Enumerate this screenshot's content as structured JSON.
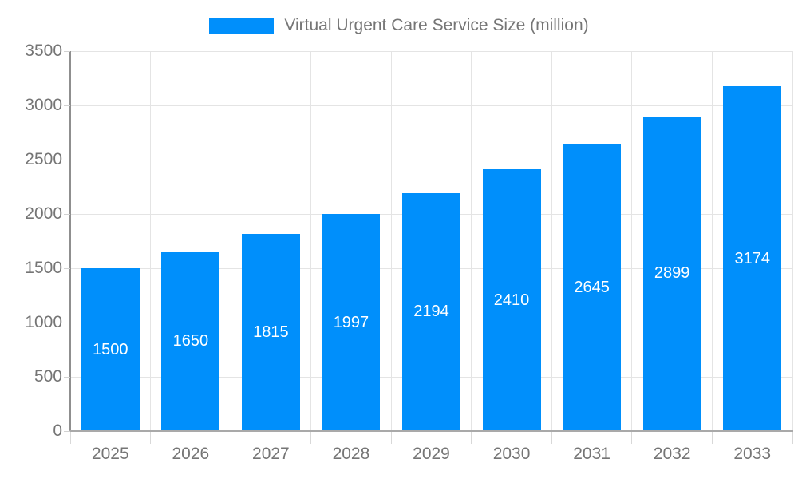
{
  "chart_data": {
    "type": "bar",
    "title": "Virtual Urgent Care Service Size (million)",
    "legend_entries": [
      "Virtual Urgent Care Service Size (million)"
    ],
    "legend_position": "top",
    "categories": [
      "2025",
      "2026",
      "2027",
      "2028",
      "2029",
      "2030",
      "2031",
      "2032",
      "2033"
    ],
    "values": [
      1500,
      1650,
      1815,
      1997,
      2194,
      2410,
      2645,
      2899,
      3174
    ],
    "value_labels_shown": true,
    "xlabel": "",
    "ylabel": "",
    "ylim": [
      0,
      3500
    ],
    "ytick_step": 500,
    "yticks": [
      0,
      500,
      1000,
      1500,
      2000,
      2500,
      3000,
      3500
    ],
    "grid": true,
    "colors": {
      "bar": "#008FFB",
      "value_label": "#FFFFFF",
      "axis_text": "#757575",
      "legend_text": "#757575",
      "gridline": "#E4E4E4",
      "axis_line": "#A0A0A0",
      "tick": "#D5D5D5",
      "background": "#FFFFFF"
    }
  }
}
